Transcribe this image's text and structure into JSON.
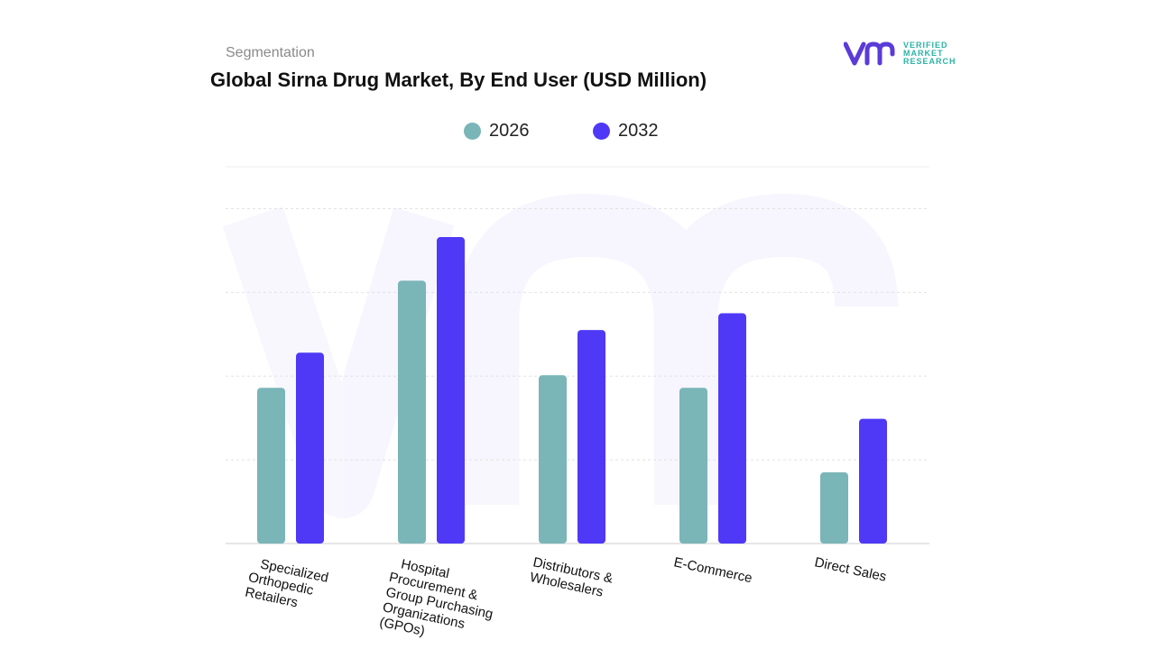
{
  "header": {
    "subtitle": "Segmentation",
    "title": "Global Sirna Drug Market, By End User (USD Million)"
  },
  "logo": {
    "lines": [
      "VERIFIED",
      "MARKET",
      "RESEARCH"
    ],
    "color_primary": "#5a3bd8",
    "color_text": "#2bb3a6"
  },
  "chart_data": {
    "type": "bar",
    "categories": [
      "Specialized Orthopedic Retailers",
      "Hospital Procurement & Group Purchasing Organizations (GPOs)",
      "Distributors & Wholesalers",
      "E-Commerce",
      "Direct Sales"
    ],
    "category_label_lines": [
      [
        "Specialized",
        "Orthopedic",
        "Retailers"
      ],
      [
        "Hospital",
        "Procurement &",
        "Group Purchasing",
        "Organizations",
        "(GPOs)"
      ],
      [
        "Distributors &",
        "Wholesalers"
      ],
      [
        "E-Commerce"
      ],
      [
        "Direct Sales"
      ]
    ],
    "series": [
      {
        "name": "2026",
        "color": "#7ab5b8",
        "values": [
          1.86,
          3.14,
          2.01,
          1.86,
          0.85
        ]
      },
      {
        "name": "2032",
        "color": "#4f39f6",
        "values": [
          2.28,
          3.66,
          2.55,
          2.75,
          1.49
        ]
      }
    ],
    "ylim": [
      0,
      4.5
    ],
    "gridlines": [
      1,
      2,
      3,
      4
    ],
    "grid": true,
    "legend_position": "top-center",
    "title": "Global Sirna Drug Market, By End User (USD Million)",
    "xlabel": "",
    "ylabel": ""
  }
}
